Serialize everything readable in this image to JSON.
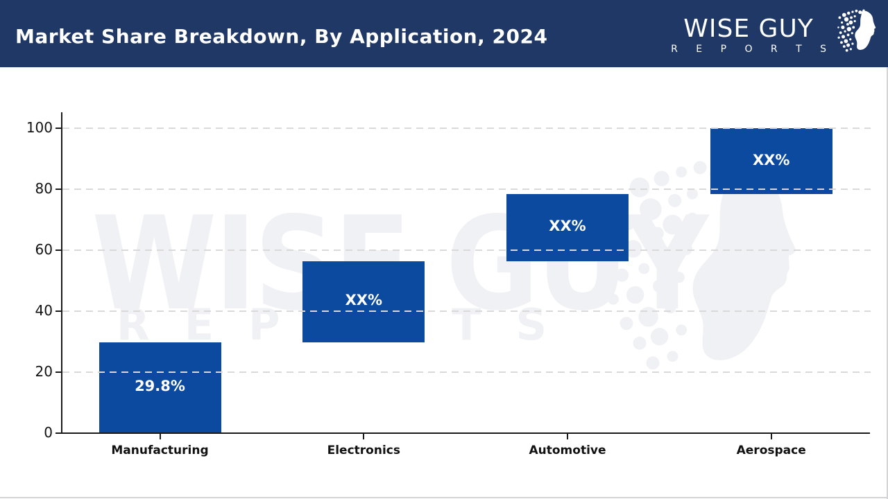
{
  "header": {
    "title": "Market Share Breakdown, By Application, 2024",
    "logo": {
      "line1": "WISE GUY",
      "line2": "R E P O R T S"
    }
  },
  "watermark": {
    "line1": "WISE GUY",
    "line2": "REPORTS"
  },
  "colors": {
    "header_bg": "#1f3866",
    "bar": "#0c4a9f",
    "bar_label": "#ffffff",
    "gridline": "#d9d9d9",
    "axis": "#1a1a1a",
    "watermark": "#f0f1f4"
  },
  "chart_data": {
    "type": "bar",
    "subtype": "floating-waterfall",
    "title": "Market Share Breakdown, By Application, 2024",
    "xlabel": "",
    "ylabel": "",
    "categories": [
      "Manufacturing",
      "Electronics",
      "Automotive",
      "Aerospace"
    ],
    "segments": [
      {
        "category": "Manufacturing",
        "base": 0,
        "top": 29.8,
        "label": "29.8%"
      },
      {
        "category": "Electronics",
        "base": 29.8,
        "top": 56.4,
        "label": "XX%"
      },
      {
        "category": "Automotive",
        "base": 56.4,
        "top": 78.4,
        "label": "XX%"
      },
      {
        "category": "Aerospace",
        "base": 78.4,
        "top": 100,
        "label": "XX%"
      }
    ],
    "yticks": [
      0,
      20,
      40,
      60,
      80,
      100
    ],
    "ylim": [
      0,
      105
    ],
    "grid": "horizontal-dashed",
    "legend": "none"
  }
}
